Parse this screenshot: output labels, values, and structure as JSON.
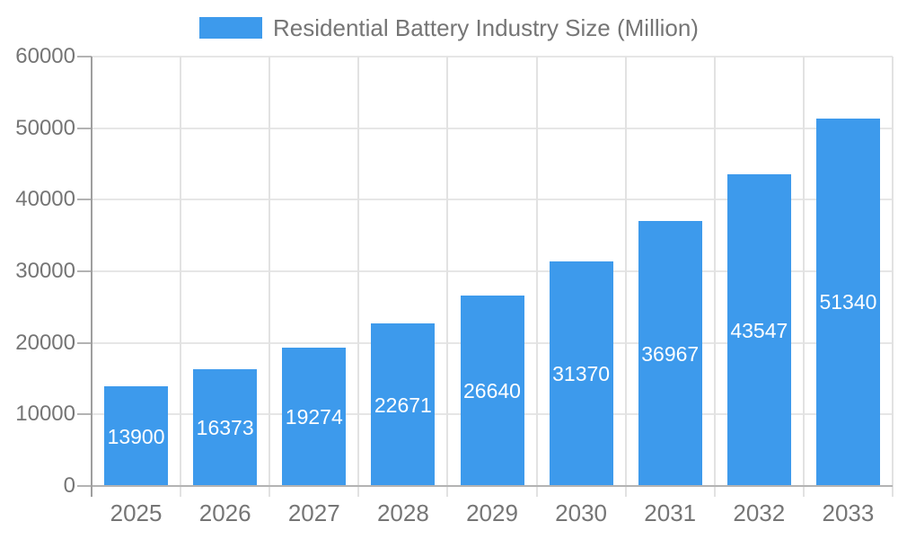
{
  "chart_data": {
    "type": "bar",
    "title": "Residential Battery Industry Size (Million)",
    "categories": [
      "2025",
      "2026",
      "2027",
      "2028",
      "2029",
      "2030",
      "2031",
      "2032",
      "2033"
    ],
    "values": [
      13900,
      16373,
      19274,
      22671,
      26640,
      31370,
      36967,
      43547,
      51340
    ],
    "bar_labels": [
      "13900",
      "16373",
      "19274",
      "22671",
      "26640",
      "31370",
      "36967",
      "43547",
      "51340"
    ],
    "xlabel": "",
    "ylabel": "",
    "ylim": [
      0,
      60000
    ],
    "y_ticks": [
      0,
      10000,
      20000,
      30000,
      40000,
      50000,
      60000
    ],
    "legend_position": "top",
    "grid": "on",
    "colors": {
      "series": "#3d9aec",
      "bar_label_text": "#ffffff",
      "axis_text": "#757575",
      "legend_text": "#757575",
      "grid_horizontal": "#e6e6e6",
      "grid_vertical": "#e2e2e2",
      "baseline": "#b3b3b3",
      "axis_line": "#9e9e9e",
      "tick": "#b3b3b3",
      "background": "#ffffff"
    }
  }
}
